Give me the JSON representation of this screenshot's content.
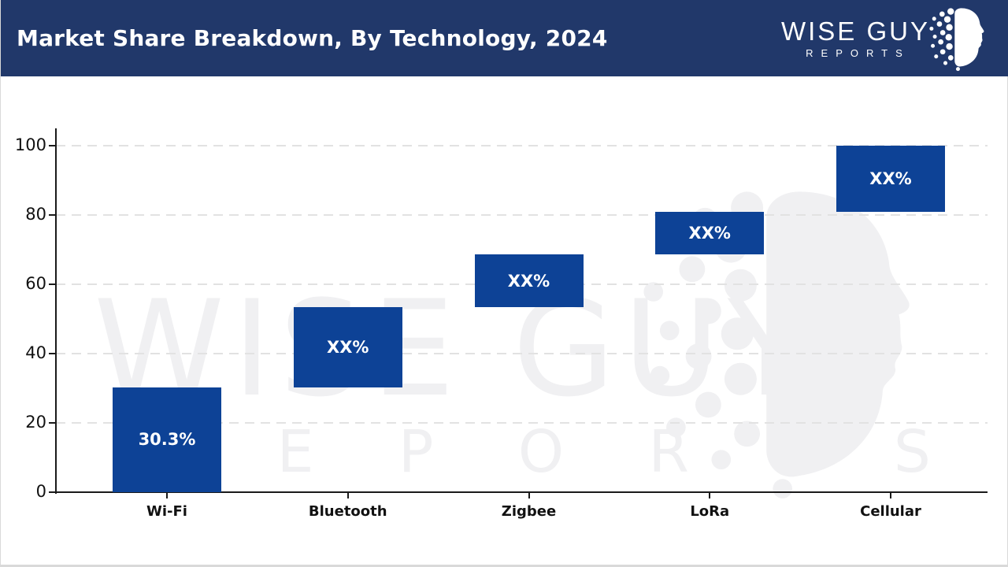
{
  "header": {
    "title": "Market Share Breakdown, By Technology, 2024",
    "logo": {
      "line1": "WISE GUY",
      "line2": "REPORTS"
    }
  },
  "watermark": {
    "line1": "WISE GUY",
    "line2": "REPORTS"
  },
  "chart_data": {
    "type": "bar",
    "subtype": "waterfall",
    "title": "Market Share Breakdown, By Technology, 2024",
    "categories": [
      "Wi-Fi",
      "Bluetooth",
      "Zigbee",
      "LoRa",
      "Cellular"
    ],
    "segments": [
      {
        "category": "Wi-Fi",
        "start": 0,
        "end": 30.3,
        "label": "30.3%"
      },
      {
        "category": "Bluetooth",
        "start": 30.3,
        "end": 53.4,
        "label": "XX%"
      },
      {
        "category": "Zigbee",
        "start": 53.4,
        "end": 68.6,
        "label": "XX%"
      },
      {
        "category": "LoRa",
        "start": 68.6,
        "end": 80.8,
        "label": "XX%"
      },
      {
        "category": "Cellular",
        "start": 80.8,
        "end": 100,
        "label": "XX%"
      }
    ],
    "yticks": [
      0,
      20,
      40,
      60,
      80,
      100
    ],
    "ylim": [
      0,
      105
    ],
    "xlabel": "",
    "ylabel": "",
    "grid": "horizontal dashed",
    "legend": "none",
    "bar_color": "#0d4296",
    "bar_label_color": "#ffffff"
  },
  "colors": {
    "header_bg": "#21386a",
    "page_bg": "#ffffff",
    "axis": "#1a1a1a",
    "grid": "#e2e2e2",
    "watermark": "#f0f0f2"
  }
}
